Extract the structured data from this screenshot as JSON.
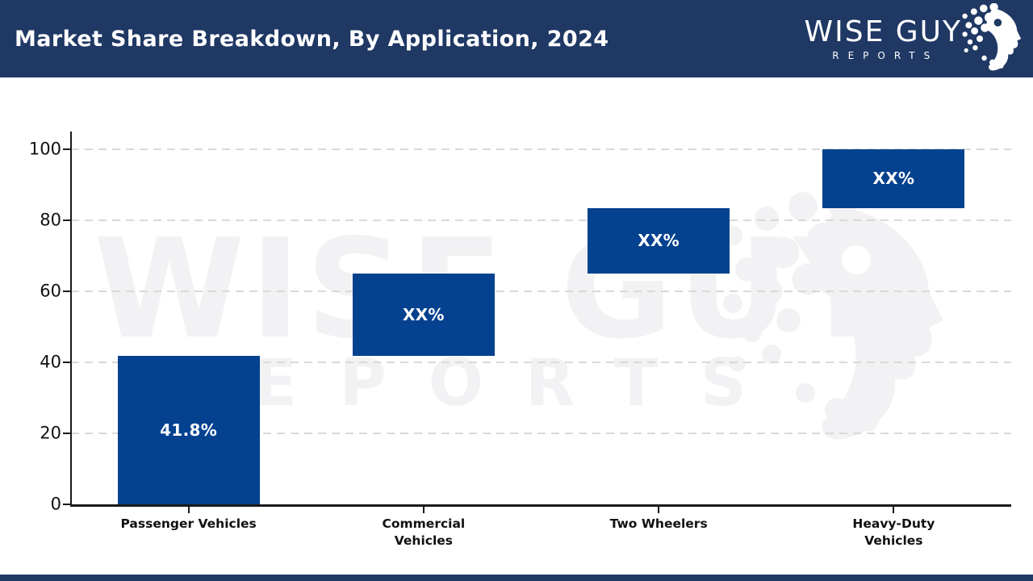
{
  "header": {
    "title": "Market Share Breakdown, By Application, 2024",
    "logo": {
      "wordmark": "WISE GUY",
      "subtext": "REPORTS"
    }
  },
  "watermark": {
    "wordmark": "WISE GUY",
    "subtext": "REPORTS"
  },
  "chart_data": {
    "type": "bar",
    "subtype": "waterfall",
    "title": "Market Share Breakdown, By Application, 2024",
    "categories": [
      "Passenger Vehicles",
      "Commercial Vehicles",
      "Two Wheelers",
      "Heavy-Duty Vehicles"
    ],
    "category_lines": [
      [
        "Passenger Vehicles"
      ],
      [
        "Commercial",
        "Vehicles"
      ],
      [
        "Two Wheelers"
      ],
      [
        "Heavy-Duty",
        "Vehicles"
      ]
    ],
    "segments": [
      {
        "category": "Passenger Vehicles",
        "start": 0,
        "end": 41.8,
        "label": "41.8%"
      },
      {
        "category": "Commercial Vehicles",
        "start": 41.8,
        "end": 65,
        "label": "XX%"
      },
      {
        "category": "Two Wheelers",
        "start": 65,
        "end": 83.5,
        "label": "XX%"
      },
      {
        "category": "Heavy-Duty Vehicles",
        "start": 83.5,
        "end": 100,
        "label": "XX%"
      }
    ],
    "ylim": [
      0,
      100
    ],
    "yticks": [
      0,
      20,
      40,
      60,
      80,
      100
    ],
    "xlabel": "",
    "ylabel": "",
    "grid": "horizontal-dashed",
    "legend": "none",
    "bar_color": "#04418f",
    "bar_label_color": "#ffffff"
  },
  "colors": {
    "header_bg": "#1f3864",
    "bar": "#04418f",
    "grid": "#d9d9d9",
    "axis": "#1a1a1a",
    "watermark": "#f2f2f4",
    "background": "#ffffff"
  }
}
